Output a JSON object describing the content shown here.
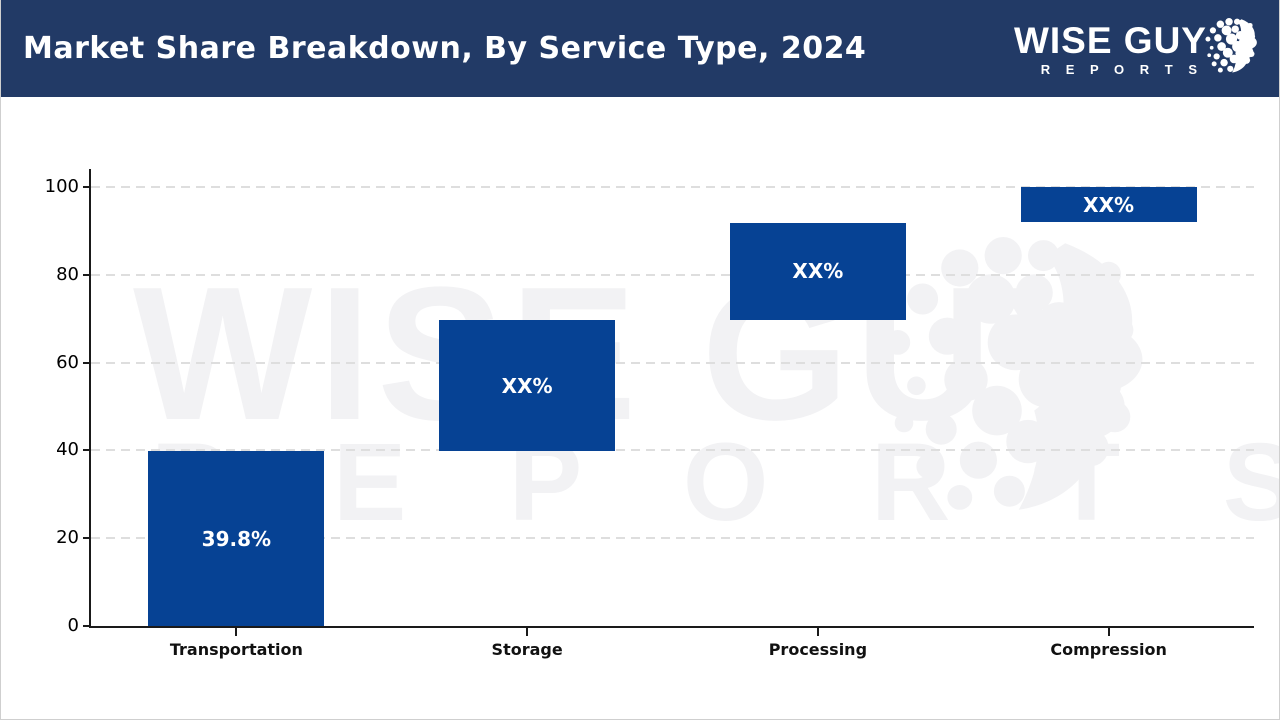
{
  "header": {
    "title": "Market Share Breakdown, By Service Type, 2024",
    "background_color": "#223a66",
    "logo": {
      "wordmark": "WISE GUY",
      "subtext": "R E P O R T S",
      "face_icon": "dotted-face-profile"
    }
  },
  "watermark": {
    "wordmark": "WISE GUY",
    "subtext": "R E P O R T S",
    "face_icon": "dotted-face-profile"
  },
  "chart_data": {
    "type": "bar",
    "subtype": "waterfall",
    "title": "Market Share Breakdown, By Service Type, 2024",
    "categories": [
      "Transportation",
      "Storage",
      "Processing",
      "Compression"
    ],
    "segments": [
      {
        "category": "Transportation",
        "start": 0,
        "end": 39.8,
        "value": 39.8,
        "label": "39.8%"
      },
      {
        "category": "Storage",
        "start": 39.8,
        "end": 69.6,
        "value": 29.8,
        "label": "XX%"
      },
      {
        "category": "Processing",
        "start": 69.6,
        "end": 91.9,
        "value": 22.3,
        "label": "XX%"
      },
      {
        "category": "Compression",
        "start": 92.0,
        "end": 100.0,
        "value": 8.0,
        "label": "XX%"
      }
    ],
    "xlabel": "",
    "ylabel": "",
    "ylim": [
      0,
      105
    ],
    "yticks": [
      0,
      20,
      40,
      60,
      80,
      100
    ],
    "grid": "horizontal-dashed",
    "legend": "none",
    "bar_color": "#064294",
    "bar_label_color": "#ffffff",
    "axis_color": "#1a1a1a",
    "gridline_color": "#dedede"
  }
}
